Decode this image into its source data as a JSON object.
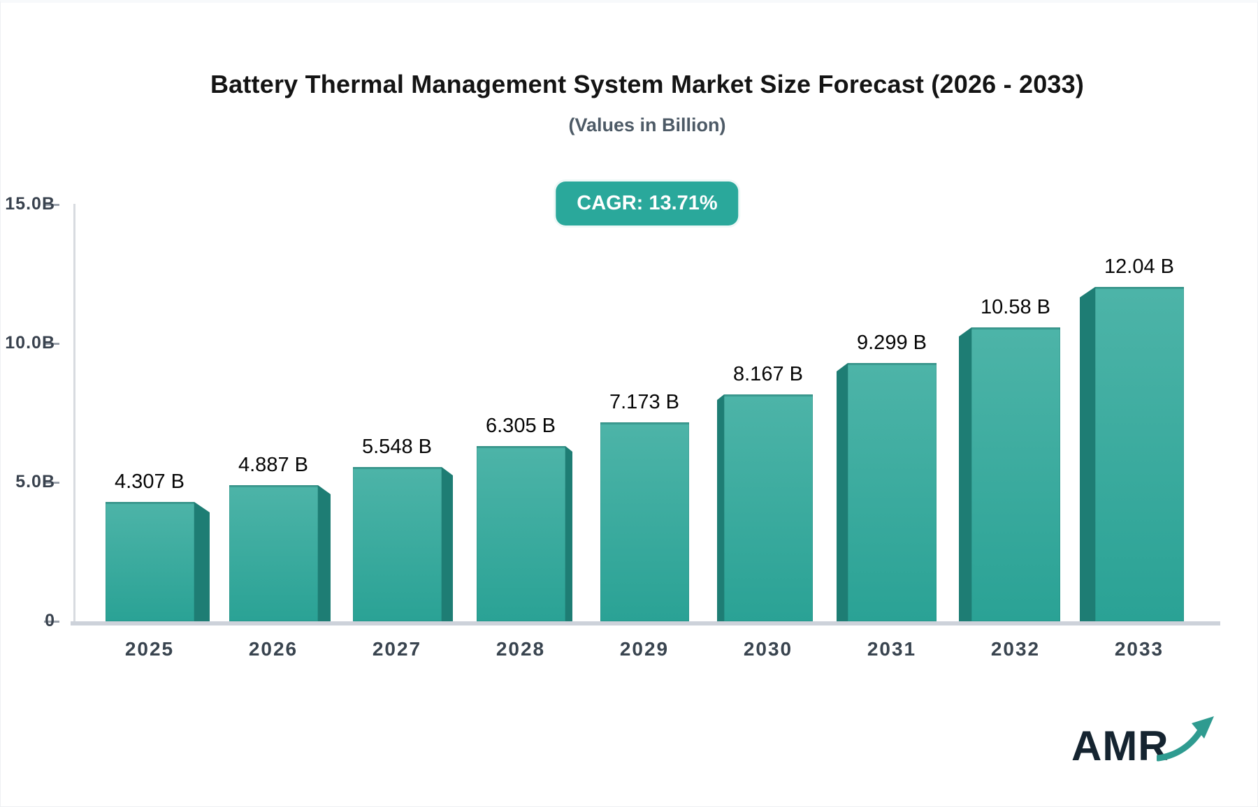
{
  "header": {
    "title": "Battery Thermal Management System Market Size Forecast (2026 - 2033)",
    "subtitle": "(Values in Billion)",
    "cagr_label": "CAGR: 13.71%"
  },
  "brand": {
    "logo_text": "AMR",
    "arrow_icon": "trend-up-arrow"
  },
  "colors": {
    "accent_teal": "#2AA89B",
    "bar_face_top": "#4DB4A8",
    "bar_face_bottom": "#2AA295",
    "bar_side_dark": "#1E7D74",
    "axis_line": "#D8DBE0",
    "baseline": "#CDD2DA",
    "tick_text": "#39424E",
    "value_text": "#060606",
    "logo_navy": "#152430",
    "logo_arrow_teal": "#2F9B90"
  },
  "chart_data": {
    "type": "bar",
    "title": "Battery Thermal Management System Market Size Forecast (2026 - 2033)",
    "subtitle": "(Values in Billion)",
    "annotation": "CAGR: 13.71%",
    "categories": [
      "2025",
      "2026",
      "2027",
      "2028",
      "2029",
      "2030",
      "2031",
      "2032",
      "2033"
    ],
    "values": [
      4.307,
      4.887,
      5.548,
      6.305,
      7.173,
      8.167,
      9.299,
      10.58,
      12.04
    ],
    "value_labels": [
      "4.307 B",
      "4.887 B",
      "5.548 B",
      "6.305 B",
      "7.173 B",
      "8.167 B",
      "9.299 B",
      "10.58 B",
      "12.04 B"
    ],
    "xlabel": "",
    "ylabel": "",
    "ylim": [
      0,
      15
    ],
    "yticks": [
      {
        "value": 0,
        "label": "0"
      },
      {
        "value": 5,
        "label": "5.0B"
      },
      {
        "value": 10,
        "label": "10.0B"
      },
      {
        "value": 15,
        "label": "15.0B"
      }
    ],
    "grid": false,
    "legend": "none",
    "bar_style": "3d-teal"
  }
}
